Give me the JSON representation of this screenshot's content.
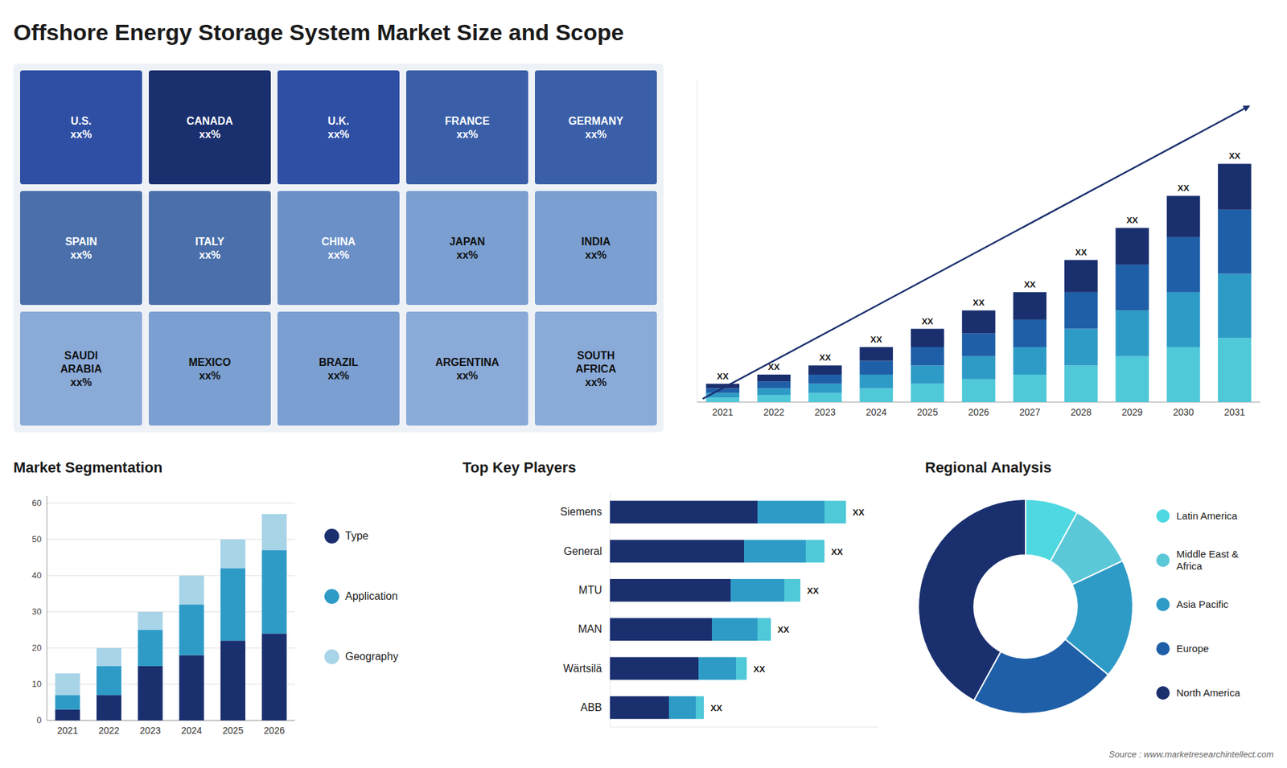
{
  "title": "Offshore Energy Storage System Market Size and Scope",
  "annotations": [
    "Source : www.marketresearchintellect.com"
  ],
  "chart_data": [
    {
      "type": "map",
      "categories": [
        "U.S.\nxx%",
        "CANADA\nxx%",
        "U.K.\nxx%",
        "FRANCE\nxx%",
        "GERMANY\nxx%",
        "SPAIN\nxx%",
        "ITALY\nxx%",
        "CHINA\nxx%",
        "JAPAN\nxx%",
        "INDIA\nxx%",
        "SAUDI\nARABIA\nxx%",
        "MEXICO\nxx%",
        "BRAZIL\nxx%",
        "ARGENTINA\nxx%",
        "SOUTH\nAFRICA\nxx%"
      ],
      "colors": [
        "#2e4fa3",
        "#1a2f6e",
        "#2e4fa3",
        "#3a5fa8",
        "#3a5fa8",
        "#4a6faa",
        "#4a6faa",
        "#6b8fc7",
        "#7a9fd0",
        "#7a9fd0",
        "#8aaad8",
        "#7a9fd0",
        "#7a9fd0",
        "#8aaad8",
        "#8aaad8"
      ],
      "tick_labels": false
    },
    {
      "type": "bar",
      "stacked": true,
      "categories": [
        "2021",
        "2022",
        "2023",
        "2024",
        "2025",
        "2026",
        "2027",
        "2028",
        "2029",
        "2030",
        "2031"
      ],
      "series": [
        {
          "color": "#4fc8d8",
          "values": [
            1,
            1.5,
            2,
            3,
            4,
            5,
            6,
            8,
            10,
            12,
            14
          ]
        },
        {
          "color": "#2e9bc7",
          "values": [
            1,
            1.5,
            2,
            3,
            4,
            5,
            6,
            8,
            10,
            12,
            14
          ]
        },
        {
          "color": "#1e5fa8",
          "values": [
            1,
            1.5,
            2,
            3,
            4,
            5,
            6,
            8,
            10,
            12,
            14
          ]
        },
        {
          "color": "#1a2f6e",
          "values": [
            1,
            1.5,
            2,
            3,
            4,
            5,
            6,
            7,
            8,
            9,
            10
          ]
        }
      ],
      "ylim": [
        0,
        70.2
      ],
      "tick_labels": "x",
      "annotations": [
        "XX",
        "XX",
        "XX",
        "XX",
        "XX",
        "XX",
        "XX",
        "XX",
        "XX",
        "XX",
        "XX"
      ]
    },
    {
      "type": "bar",
      "stacked": true,
      "title": "Market Segmentation",
      "categories": [
        "2021",
        "2022",
        "2023",
        "2024",
        "2025",
        "2026"
      ],
      "series": [
        {
          "name": "Type",
          "color": "#1a2f6e",
          "values": [
            3,
            7,
            15,
            18,
            22,
            24
          ]
        },
        {
          "name": "Application",
          "color": "#2e9bc7",
          "values": [
            4,
            8,
            10,
            14,
            20,
            23
          ]
        },
        {
          "name": "Geography",
          "color": "#a8d4e8",
          "values": [
            6,
            5,
            5,
            8,
            8,
            10
          ]
        }
      ],
      "ylim": [
        0,
        62
      ],
      "yticks": [
        0,
        10,
        20,
        30,
        40,
        50,
        60
      ],
      "grid": true,
      "legend": "right"
    },
    {
      "type": "bar",
      "stacked": true,
      "orientation": "horizontal",
      "title": "Top Key Players",
      "categories": [
        "Siemens",
        "General",
        "MTU",
        "MAN",
        "Wärtsilä",
        "ABB"
      ],
      "series": [
        {
          "color": "#1a2f6e",
          "values": [
            0.55,
            0.5,
            0.45,
            0.38,
            0.33,
            0.22
          ]
        },
        {
          "color": "#2e9bc7",
          "values": [
            0.25,
            0.23,
            0.2,
            0.17,
            0.14,
            0.1
          ]
        },
        {
          "color": "#4fc8d8",
          "values": [
            0.08,
            0.07,
            0.06,
            0.05,
            0.04,
            0.03
          ]
        }
      ],
      "xlim": [
        0,
        1
      ],
      "tick_labels": "y",
      "annotations": [
        "XX",
        "XX",
        "XX",
        "XX",
        "XX",
        "XX"
      ]
    },
    {
      "type": "pie",
      "title": "Regional Analysis",
      "categories": [
        "Latin America",
        "Middle East &\nAfrica",
        "Asia Pacific",
        "Europe",
        "North America"
      ],
      "values": [
        8,
        10,
        18,
        22,
        42
      ],
      "colors": [
        "#4fd8e0",
        "#5bc8d8",
        "#2e9bc7",
        "#1e5fa8",
        "#1a2f6e"
      ],
      "legend": "right"
    }
  ]
}
